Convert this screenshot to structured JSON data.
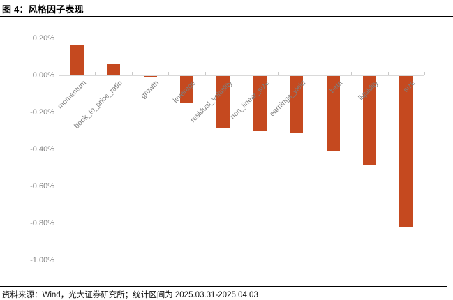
{
  "figure": {
    "title": "图 4：风格因子表现",
    "source_note": "资料来源：Wind，光大证券研究所；统计区间为 2025.03.31-2025.04.03"
  },
  "chart_data": {
    "type": "bar",
    "title": "风格因子表现",
    "categories": [
      "momentum",
      "book_to_price_ratio",
      "growth",
      "leverage",
      "residual_volatility",
      "non_linear_size",
      "earnings_yield",
      "beta",
      "liquidity",
      "size"
    ],
    "values": [
      0.16,
      0.06,
      -0.01,
      -0.15,
      -0.28,
      -0.3,
      -0.31,
      -0.41,
      -0.48,
      -0.82
    ],
    "unit": "%",
    "xlabel": "",
    "ylabel": "",
    "ylim": [
      -1.0,
      0.2
    ],
    "y_ticks": [
      0.2,
      0.0,
      -0.2,
      -0.4,
      -0.6,
      -0.8,
      -1.0
    ],
    "y_tick_labels": [
      "0.20%",
      "0.00%",
      "-0.20%",
      "-0.40%",
      "-0.60%",
      "-0.80%",
      "-1.00%"
    ],
    "grid": false,
    "legend": "none",
    "colors": {
      "bar": "#c5491f",
      "axis": "#d9d9d9",
      "tick_text": "#7f7f7f"
    }
  }
}
